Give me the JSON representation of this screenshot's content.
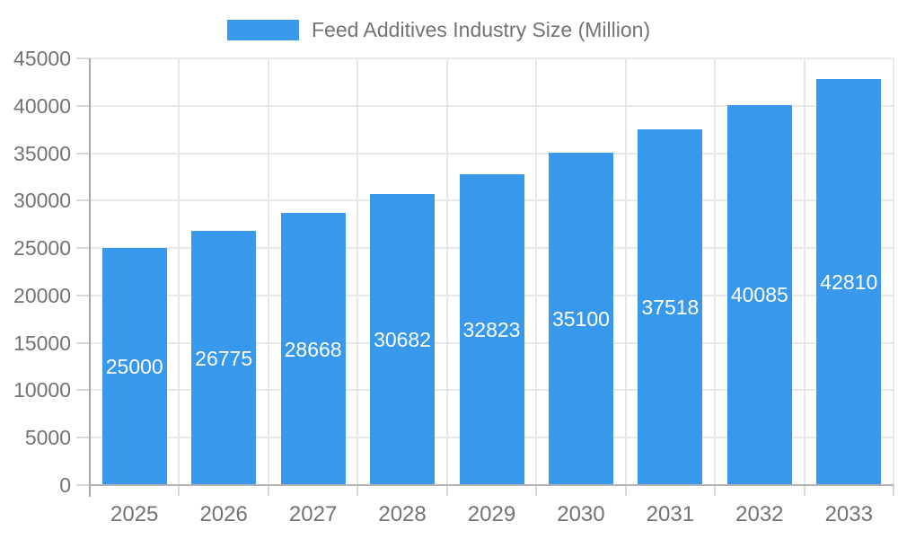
{
  "chart_data": {
    "type": "bar",
    "title": "Feed Additives Industry Size (Million)",
    "xlabel": "",
    "ylabel": "",
    "categories": [
      "2025",
      "2026",
      "2027",
      "2028",
      "2029",
      "2030",
      "2031",
      "2032",
      "2033"
    ],
    "values": [
      25000,
      26775,
      28668,
      30682,
      32823,
      35100,
      37518,
      40085,
      42810
    ],
    "series": [
      {
        "name": "Feed Additives Industry Size (Million)",
        "values": [
          25000,
          26775,
          28668,
          30682,
          32823,
          35100,
          37518,
          40085,
          42810
        ]
      }
    ],
    "value_labels": [
      "25000",
      "26775",
      "28668",
      "30682",
      "32823",
      "35100",
      "37518",
      "40085",
      "42810"
    ],
    "value_label_placement": "inside-center",
    "ylim": [
      0,
      45000
    ],
    "ytick_step": 5000,
    "ytick_labels": [
      "0",
      "5000",
      "10000",
      "15000",
      "20000",
      "25000",
      "30000",
      "35000",
      "40000",
      "45000"
    ],
    "grid": true,
    "legend_position": "top",
    "colors": {
      "bar": "#3898EC",
      "grid": "#e8e8e8",
      "axis_line": "#a8a8a8",
      "baseline": "#b3b3b3",
      "tick": "#d9d9d9",
      "axis_text": "#737373",
      "value_text": "#ffffff",
      "background": "#ffffff"
    }
  }
}
